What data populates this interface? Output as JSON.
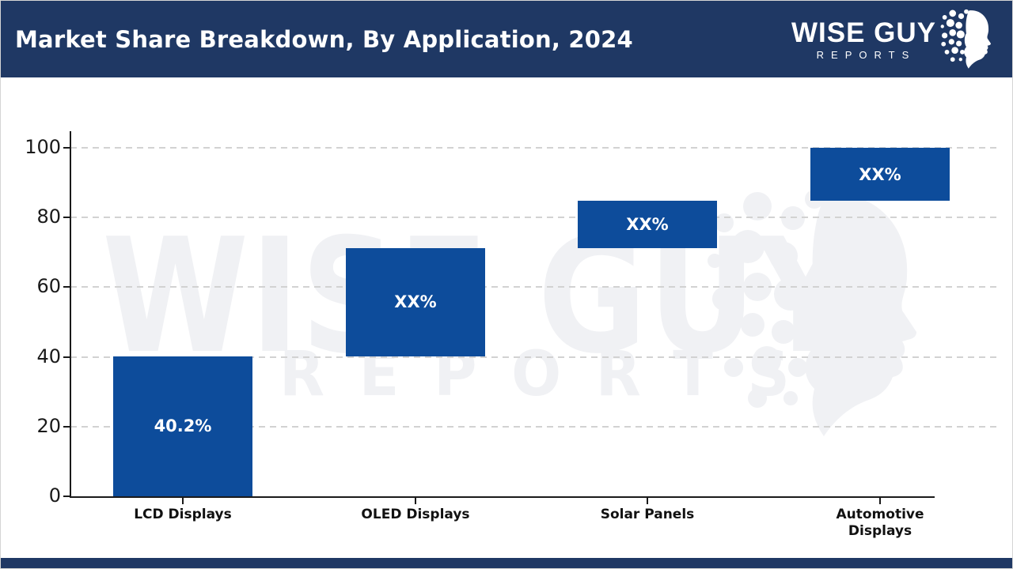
{
  "header": {
    "title": "Market Share Breakdown, By Application, 2024",
    "background_color": "#1f3864",
    "logo": {
      "line1": "WISE GUY",
      "line2": "REPORTS"
    }
  },
  "watermark": {
    "line1": "WISE GUY",
    "line2": "REPORTS"
  },
  "footer": {
    "background_color": "#1f3864"
  },
  "chart_data": {
    "type": "bar",
    "subtype": "waterfall",
    "title": "Market Share Breakdown, By Application, 2024",
    "categories": [
      "LCD Displays",
      "OLED Displays",
      "Solar Panels",
      "Automotive Displays"
    ],
    "segments": [
      {
        "category": "LCD Displays",
        "start": 0,
        "end": 40.2,
        "label": "40.2%"
      },
      {
        "category": "OLED Displays",
        "start": 40.2,
        "end": 71.3,
        "label": "XX%"
      },
      {
        "category": "Solar Panels",
        "start": 71.3,
        "end": 84.8,
        "label": "XX%"
      },
      {
        "category": "Automotive Displays",
        "start": 84.8,
        "end": 100,
        "label": "XX%"
      }
    ],
    "xlabel": "",
    "ylabel": "",
    "ylim": [
      0,
      104
    ],
    "yticks": [
      0,
      20,
      40,
      60,
      80,
      100
    ],
    "grid": "horizontal-dashed",
    "legend": "none",
    "bar_color": "#0d4c9b",
    "bar_label_color": "#ffffff",
    "axis_color": "#1a1a1a",
    "gridline_color": "#d2d2d2"
  }
}
